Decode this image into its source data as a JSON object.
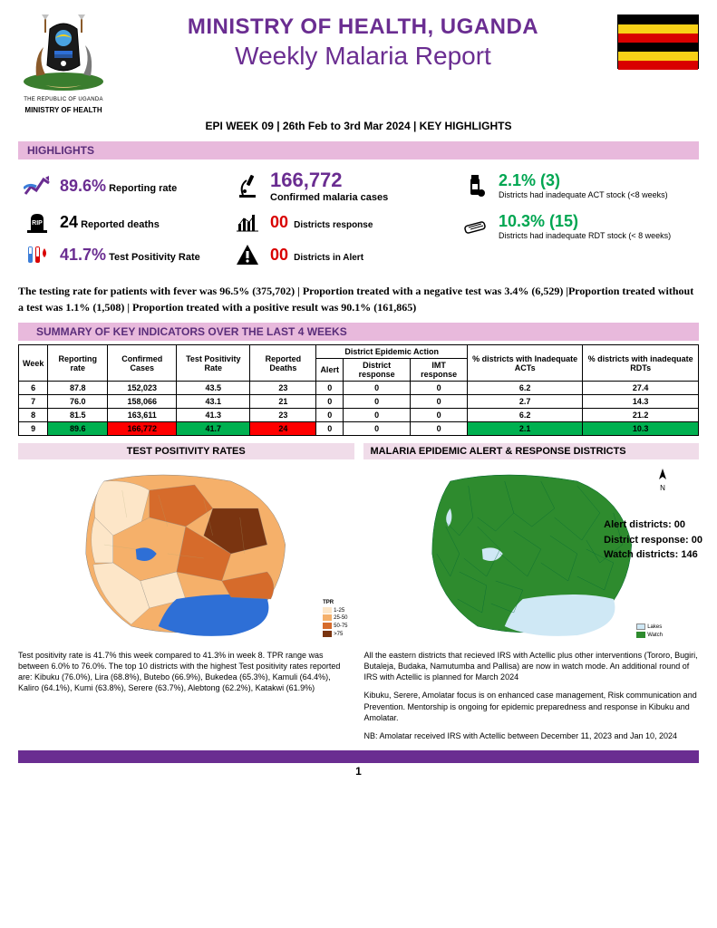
{
  "header": {
    "republic": "THE REPUBLIC OF UGANDA",
    "ministry": "MINISTRY OF HEALTH",
    "title1": "MINISTRY OF HEALTH, UGANDA",
    "title2": "Weekly Malaria Report",
    "epi_line": "EPI WEEK 09  | 26th Feb to 3rd Mar 2024 | KEY HIGHLIGHTS",
    "flag_colors": [
      "#000000",
      "#f7d117",
      "#d90000",
      "#000000",
      "#f7d117",
      "#d90000"
    ]
  },
  "sections": {
    "highlights": "HIGHLIGHTS",
    "summary": "SUMMARY OF KEY INDICATORS OVER THE LAST 4 WEEKS",
    "tpr": "TEST POSITIVITY RATES",
    "alert": "MALARIA EPIDEMIC ALERT & RESPONSE DISTRICTS"
  },
  "highlights": {
    "reporting_rate": {
      "value": "89.6%",
      "label": "Reporting rate",
      "color": "#6a2d91"
    },
    "confirmed": {
      "value": "166,772",
      "label": "Confirmed malaria cases",
      "color": "#6a2d91"
    },
    "act": {
      "value": "2.1% (3)",
      "label": "Districts had inadequate ACT stock  (<8 weeks)",
      "color": "#00a651"
    },
    "deaths": {
      "value": "24",
      "label": "Reported deaths",
      "color": "#000000"
    },
    "response": {
      "value": "00",
      "label": "Districts response",
      "color": "#d90000"
    },
    "rdt": {
      "value": "10.3% (15)",
      "label": "Districts had inadequate RDT stock (< 8 weeks)",
      "color": "#00a651"
    },
    "tpr": {
      "value": "41.7%",
      "label": "Test Positivity Rate",
      "color": "#6a2d91"
    },
    "alert": {
      "value": "00",
      "label": "Districts in Alert",
      "color": "#d90000"
    }
  },
  "narrative": "The testing rate for patients with fever was 96.5% (375,702) | Proportion treated with a negative test was 3.4% (6,529) |Proportion treated without a test was 1.1% (1,508) | Proportion treated with a positive result was 90.1% (161,865)",
  "table": {
    "columns": [
      "Week",
      "Reporting rate",
      "Confirmed Cases",
      "Test Positivity Rate",
      "Reported Deaths",
      "Alert",
      "District response",
      "IMT response",
      "% districts with Inadequate ACTs",
      "% districts with inadequate RDTs"
    ],
    "group_header": "District Epidemic Action",
    "rows": [
      {
        "cells": [
          "6",
          "87.8",
          "152,023",
          "43.5",
          "23",
          "0",
          "0",
          "0",
          "6.2",
          "27.4"
        ],
        "hl": []
      },
      {
        "cells": [
          "7",
          "76.0",
          "158,066",
          "43.1",
          "21",
          "0",
          "0",
          "0",
          "2.7",
          "14.3"
        ],
        "hl": []
      },
      {
        "cells": [
          "8",
          "81.5",
          "163,611",
          "41.3",
          "23",
          "0",
          "0",
          "0",
          "6.2",
          "21.2"
        ],
        "hl": []
      },
      {
        "cells": [
          "9",
          "89.6",
          "166,772",
          "41.7",
          "24",
          "0",
          "0",
          "0",
          "2.1",
          "10.3"
        ],
        "hl": [
          {
            "col": 1,
            "bg": "#00b050"
          },
          {
            "col": 2,
            "bg": "#ff0000"
          },
          {
            "col": 3,
            "bg": "#00b050"
          },
          {
            "col": 4,
            "bg": "#ff0000"
          },
          {
            "col": 8,
            "bg": "#00b050"
          },
          {
            "col": 9,
            "bg": "#00b050"
          }
        ]
      }
    ]
  },
  "maps": {
    "tpr": {
      "caption": "Test positivity rate is 41.7% this week compared to 41.3% in week 8. TPR range was between 6.0% to 76.0%. The top 10 districts with the highest Test positivity rates reported are: Kibuku (76.0%), Lira (68.8%), Butebo (66.9%), Bukedea (65.3%), Kamuli (64.4%), Kaliro (64.1%), Kumi (63.8%), Serere (63.7%), Alebtong (62.2%), Katakwi (61.9%)",
      "legend_title": "TPR",
      "legend": [
        {
          "color": "#fde6c8",
          "label": "1-25"
        },
        {
          "color": "#f5b06a",
          "label": "25-50"
        },
        {
          "color": "#d66b2b",
          "label": "50-75"
        },
        {
          "color": "#7a3410",
          "label": ">75"
        }
      ],
      "water_color": "#2e6fd6",
      "land_colors": [
        "#fde6c8",
        "#f5b06a",
        "#d66b2b",
        "#7a3410"
      ]
    },
    "alert": {
      "stats": {
        "alert": "Alert districts: 00",
        "response": "District response: 00",
        "watch": "Watch districts: 146"
      },
      "caption1": "All the eastern districts that recieved IRS with Actellic plus other interventions (Tororo, Bugiri, Butaleja, Budaka, Namutumba and Pallisa) are now in watch mode. An additional round of IRS with Actellic is planned for March 2024",
      "caption2": "Kibuku, Serere, Amolatar focus is on enhanced case management, Risk communication and Prevention. Mentorship is ongoing for epidemic preparedness and response in Kibuku and Amolatar.",
      "caption3": "NB: Amolatar received IRS with Actellic between December 11, 2023 and Jan 10, 2024",
      "legend": [
        {
          "color": "#cfe8f5",
          "label": "Lakes"
        },
        {
          "color": "#2e8b2e",
          "label": "Watch"
        }
      ],
      "land_color": "#2e8b2e",
      "water_color": "#cfe8f5"
    }
  },
  "page_number": "1"
}
